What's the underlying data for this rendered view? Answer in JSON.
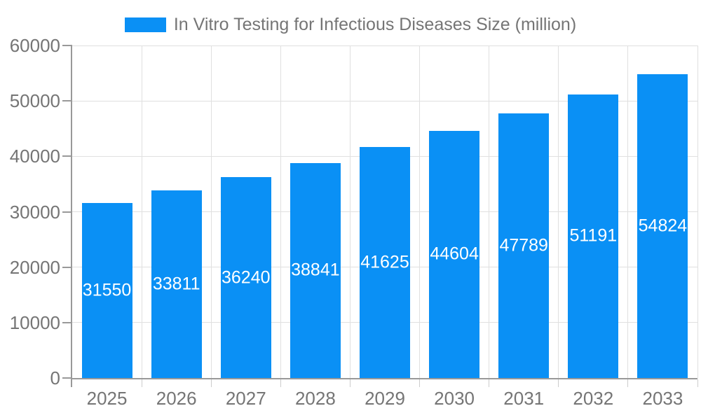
{
  "chart_data": {
    "type": "bar",
    "title": "In Vitro Testing for Infectious Diseases Size (million)",
    "categories": [
      "2025",
      "2026",
      "2027",
      "2028",
      "2029",
      "2030",
      "2031",
      "2032",
      "2033"
    ],
    "values": [
      31550,
      33811,
      36240,
      38841,
      41625,
      44604,
      47789,
      51191,
      54824
    ],
    "xlabel": "",
    "ylabel": "",
    "ylim": [
      0,
      60000
    ],
    "ytick_step": 10000,
    "yticks": [
      0,
      10000,
      20000,
      30000,
      40000,
      50000,
      60000
    ],
    "grid": true,
    "legend_position": "top-center",
    "bar_value_labels": "centered-inside-white",
    "colors": {
      "bar": "#0a90f5",
      "grid": "#e0e0e0",
      "axis": "#999999",
      "tick_label": "#757575",
      "bar_label": "#ffffff",
      "background": "#ffffff"
    }
  }
}
